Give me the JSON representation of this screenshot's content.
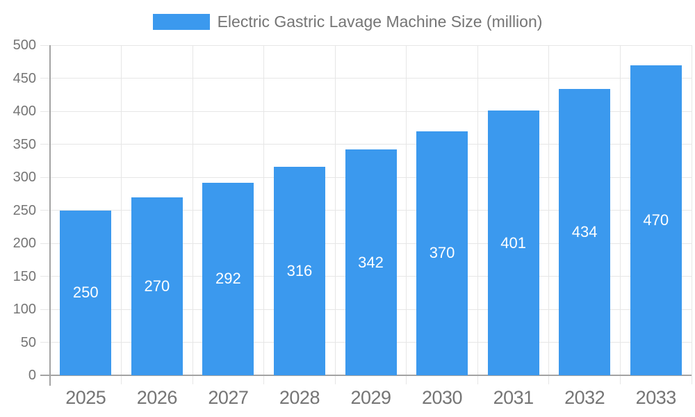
{
  "chart_data": {
    "type": "bar",
    "title": "Electric Gastric Lavage Machine Size (million)",
    "legend": [
      "Electric Gastric Lavage Machine Size (million)"
    ],
    "legend_position": "top",
    "categories": [
      "2025",
      "2026",
      "2027",
      "2028",
      "2029",
      "2030",
      "2031",
      "2032",
      "2033"
    ],
    "values": [
      250,
      270,
      292,
      316,
      342,
      370,
      401,
      434,
      470
    ],
    "xlabel": "",
    "ylabel": "",
    "ylim": [
      0,
      500
    ],
    "yticks": [
      0,
      50,
      100,
      150,
      200,
      250,
      300,
      350,
      400,
      450,
      500
    ],
    "grid": true,
    "value_labels": "inside-center",
    "colors": {
      "bar": "#3B99EE",
      "value_label": "#ffffff",
      "axis_label": "#757575",
      "axis_line": "#a3a3a3",
      "gridline": "#e6e6e6",
      "background": "#ffffff"
    }
  }
}
